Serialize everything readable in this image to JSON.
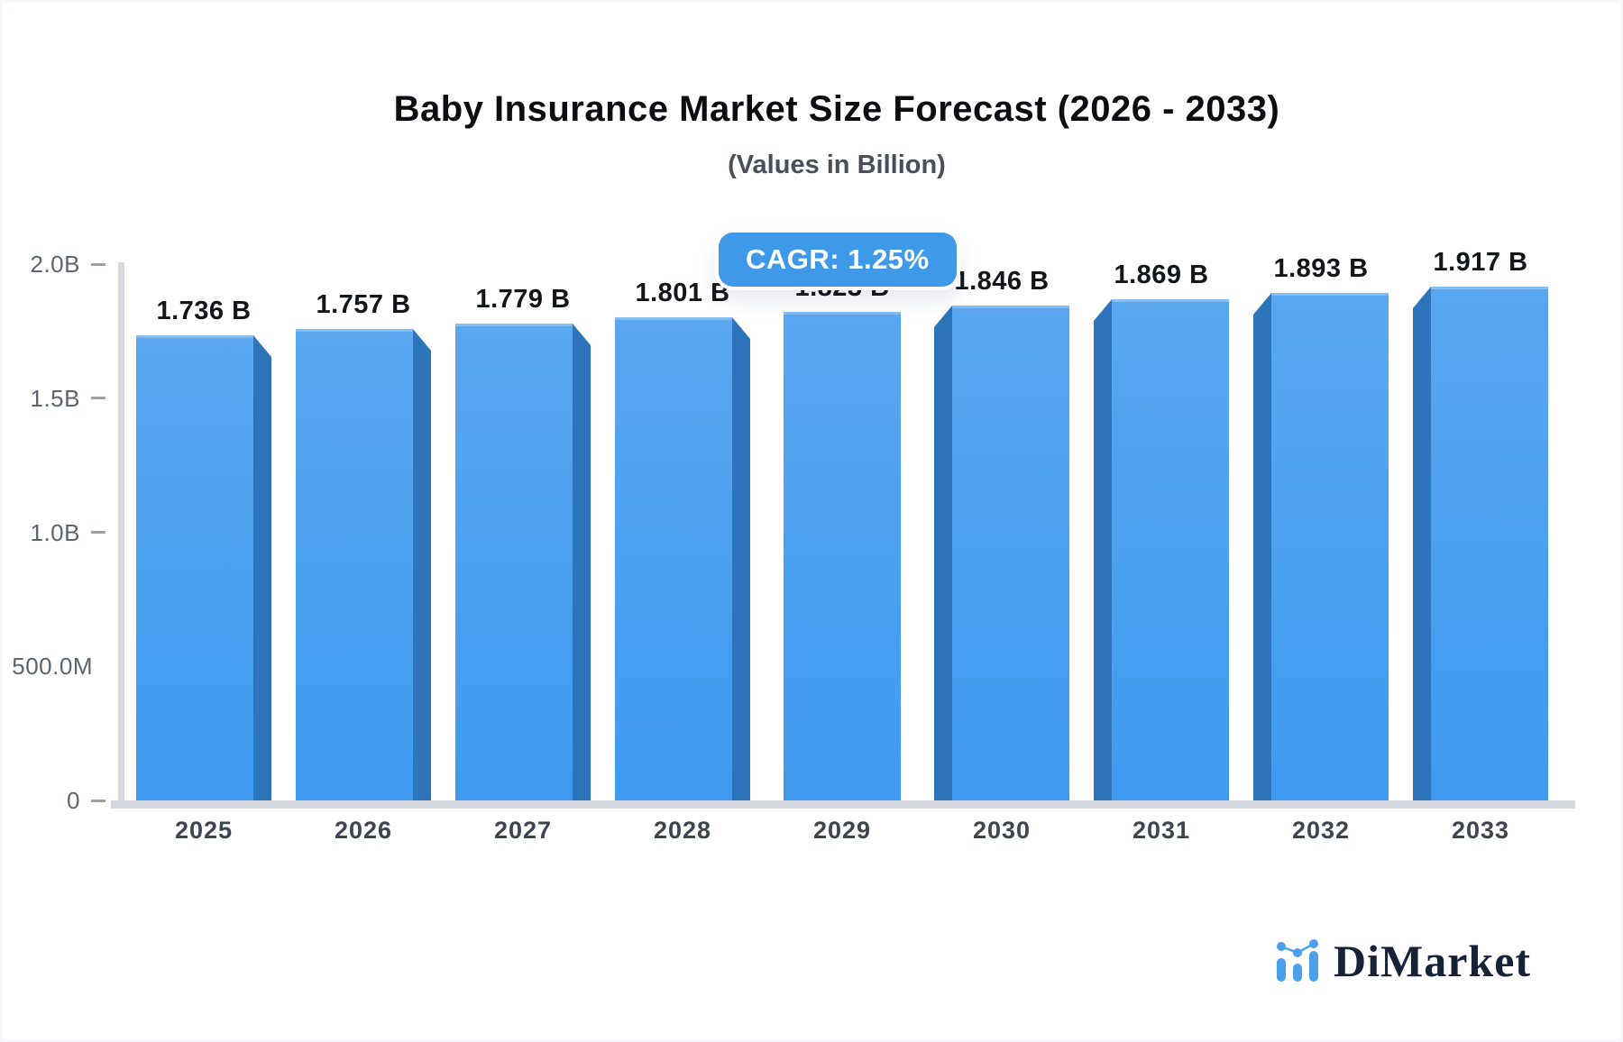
{
  "header": {
    "title": "Baby Insurance Market Size Forecast (2026 - 2033)",
    "subtitle": "(Values in Billion)"
  },
  "badge": {
    "label": "CAGR: 1.25%",
    "background": "#3e99e9",
    "text_color": "#ffffff"
  },
  "chart_data": {
    "type": "bar",
    "title": "Baby Insurance Market Size Forecast (2026 - 2033)",
    "subtitle": "(Values in Billion)",
    "categories": [
      "2025",
      "2026",
      "2027",
      "2028",
      "2029",
      "2030",
      "2031",
      "2032",
      "2033"
    ],
    "values": [
      1.736,
      1.757,
      1.779,
      1.801,
      1.823,
      1.846,
      1.869,
      1.893,
      1.917
    ],
    "value_labels": [
      "1.736 B",
      "1.757 B",
      "1.779 B",
      "1.801 B",
      "1.823 B",
      "1.846 B",
      "1.869 B",
      "1.893 B",
      "1.917 B"
    ],
    "xlabel": "",
    "ylabel": "",
    "ylim": [
      0,
      2.0
    ],
    "grid": false,
    "legend": false,
    "y_axis": [
      {
        "label": "2.0B",
        "value": 2.0,
        "tick": true
      },
      {
        "label": "1.5B",
        "value": 1.5,
        "tick": true
      },
      {
        "label": "1.0B",
        "value": 1.0,
        "tick": true
      },
      {
        "label": "500.0M",
        "value": 0.5,
        "tick": false
      },
      {
        "label": "0",
        "value": 0.0,
        "tick": true
      }
    ],
    "bar_color_top": "#5aa7f0",
    "bar_color_bottom": "#3f9af0",
    "bar_side_color": "#2d74bb",
    "axis_line_color": "#d6dae0",
    "tick_color": "#9ba1ab",
    "label_color": "#12151a"
  },
  "logo": {
    "text": "DiMarket",
    "icon": "bar-chart-logo-icon",
    "icon_color": "#4aa0ea",
    "text_color": "#152238"
  }
}
